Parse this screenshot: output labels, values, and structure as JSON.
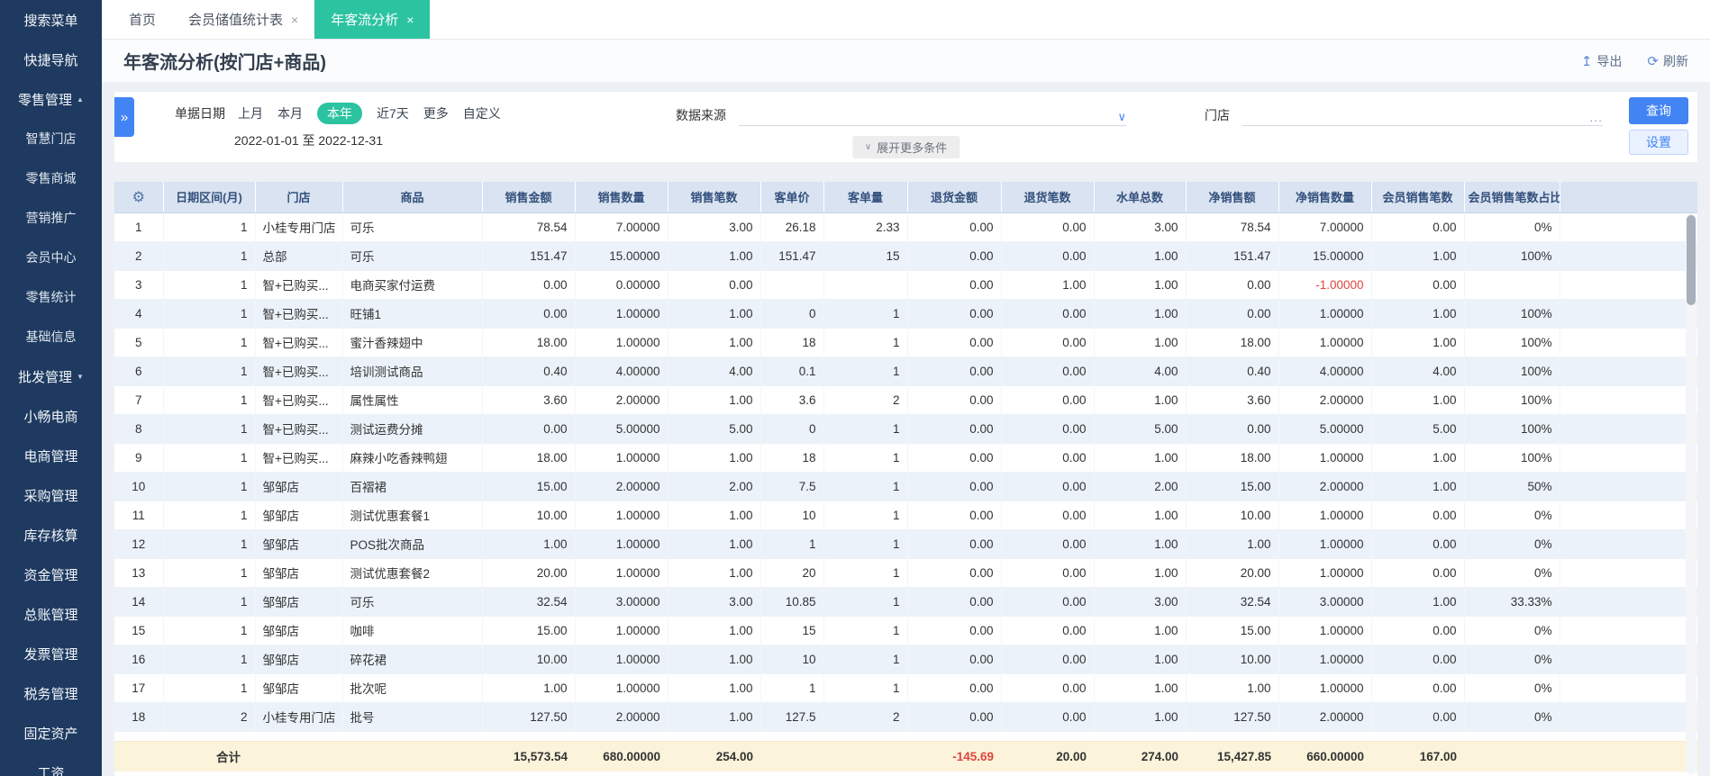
{
  "sidebar": {
    "items": [
      {
        "label": "搜索菜单"
      },
      {
        "label": "快捷导航"
      },
      {
        "label": "零售管理",
        "arrow": "up"
      },
      {
        "label": "智慧门店",
        "sub": true
      },
      {
        "label": "零售商城",
        "sub": true
      },
      {
        "label": "营销推广",
        "sub": true
      },
      {
        "label": "会员中心",
        "sub": true
      },
      {
        "label": "零售统计",
        "sub": true
      },
      {
        "label": "基础信息",
        "sub": true
      },
      {
        "label": "批发管理",
        "arrow": "down"
      },
      {
        "label": "小畅电商"
      },
      {
        "label": "电商管理"
      },
      {
        "label": "采购管理"
      },
      {
        "label": "库存核算"
      },
      {
        "label": "资金管理"
      },
      {
        "label": "总账管理"
      },
      {
        "label": "发票管理"
      },
      {
        "label": "税务管理"
      },
      {
        "label": "固定资产"
      },
      {
        "label": "工资"
      }
    ]
  },
  "tabs": [
    {
      "label": "首页",
      "closable": false,
      "active": false
    },
    {
      "label": "会员储值统计表",
      "closable": true,
      "active": false
    },
    {
      "label": "年客流分析",
      "closable": true,
      "active": true
    }
  ],
  "header": {
    "title": "年客流分析(按门店+商品)",
    "export_label": "导出",
    "refresh_label": "刷新"
  },
  "filters": {
    "date_label": "单据日期",
    "date_options": [
      "上月",
      "本月",
      "本年",
      "近7天",
      "更多",
      "自定义"
    ],
    "date_selected": "本年",
    "date_range": "2022-01-01 至 2022-12-31",
    "source_label": "数据来源",
    "store_label": "门店",
    "store_ellipsis": "...",
    "query_button": "查询",
    "settings_button": "设置",
    "expand_more": "展开更多条件"
  },
  "table": {
    "columns": [
      "日期区间(月)",
      "门店",
      "商品",
      "销售金额",
      "销售数量",
      "销售笔数",
      "客单价",
      "客单量",
      "退货金额",
      "退货笔数",
      "水单总数",
      "净销售额",
      "净销售数量",
      "会员销售笔数",
      "会员销售笔数占比"
    ],
    "rows": [
      [
        "1",
        "小桂专用门店",
        "可乐",
        "78.54",
        "7.00000",
        "3.00",
        "26.18",
        "2.33",
        "0.00",
        "0.00",
        "3.00",
        "78.54",
        "7.00000",
        "0.00",
        "0%"
      ],
      [
        "1",
        "总部",
        "可乐",
        "151.47",
        "15.00000",
        "1.00",
        "151.47",
        "15",
        "0.00",
        "0.00",
        "1.00",
        "151.47",
        "15.00000",
        "1.00",
        "100%"
      ],
      [
        "1",
        "智+已购买...",
        "电商买家付运费",
        "0.00",
        "0.00000",
        "0.00",
        "",
        "",
        "0.00",
        "1.00",
        "1.00",
        "0.00",
        "-1.00000",
        "0.00",
        ""
      ],
      [
        "1",
        "智+已购买...",
        "旺铺1",
        "0.00",
        "1.00000",
        "1.00",
        "0",
        "1",
        "0.00",
        "0.00",
        "1.00",
        "0.00",
        "1.00000",
        "1.00",
        "100%"
      ],
      [
        "1",
        "智+已购买...",
        "蜜汁香辣翅中",
        "18.00",
        "1.00000",
        "1.00",
        "18",
        "1",
        "0.00",
        "0.00",
        "1.00",
        "18.00",
        "1.00000",
        "1.00",
        "100%"
      ],
      [
        "1",
        "智+已购买...",
        "培训测试商品",
        "0.40",
        "4.00000",
        "4.00",
        "0.1",
        "1",
        "0.00",
        "0.00",
        "4.00",
        "0.40",
        "4.00000",
        "4.00",
        "100%"
      ],
      [
        "1",
        "智+已购买...",
        "属性属性",
        "3.60",
        "2.00000",
        "1.00",
        "3.6",
        "2",
        "0.00",
        "0.00",
        "1.00",
        "3.60",
        "2.00000",
        "1.00",
        "100%"
      ],
      [
        "1",
        "智+已购买...",
        "测试运费分摊",
        "0.00",
        "5.00000",
        "5.00",
        "0",
        "1",
        "0.00",
        "0.00",
        "5.00",
        "0.00",
        "5.00000",
        "5.00",
        "100%"
      ],
      [
        "1",
        "智+已购买...",
        "麻辣小吃香辣鸭翅",
        "18.00",
        "1.00000",
        "1.00",
        "18",
        "1",
        "0.00",
        "0.00",
        "1.00",
        "18.00",
        "1.00000",
        "1.00",
        "100%"
      ],
      [
        "1",
        "邹邹店",
        "百褶裙",
        "15.00",
        "2.00000",
        "2.00",
        "7.5",
        "1",
        "0.00",
        "0.00",
        "2.00",
        "15.00",
        "2.00000",
        "1.00",
        "50%"
      ],
      [
        "1",
        "邹邹店",
        "测试优惠套餐1",
        "10.00",
        "1.00000",
        "1.00",
        "10",
        "1",
        "0.00",
        "0.00",
        "1.00",
        "10.00",
        "1.00000",
        "0.00",
        "0%"
      ],
      [
        "1",
        "邹邹店",
        "POS批次商品",
        "1.00",
        "1.00000",
        "1.00",
        "1",
        "1",
        "0.00",
        "0.00",
        "1.00",
        "1.00",
        "1.00000",
        "0.00",
        "0%"
      ],
      [
        "1",
        "邹邹店",
        "测试优惠套餐2",
        "20.00",
        "1.00000",
        "1.00",
        "20",
        "1",
        "0.00",
        "0.00",
        "1.00",
        "20.00",
        "1.00000",
        "0.00",
        "0%"
      ],
      [
        "1",
        "邹邹店",
        "可乐",
        "32.54",
        "3.00000",
        "3.00",
        "10.85",
        "1",
        "0.00",
        "0.00",
        "3.00",
        "32.54",
        "3.00000",
        "1.00",
        "33.33%"
      ],
      [
        "1",
        "邹邹店",
        "咖啡",
        "15.00",
        "1.00000",
        "1.00",
        "15",
        "1",
        "0.00",
        "0.00",
        "1.00",
        "15.00",
        "1.00000",
        "0.00",
        "0%"
      ],
      [
        "1",
        "邹邹店",
        "碎花裙",
        "10.00",
        "1.00000",
        "1.00",
        "10",
        "1",
        "0.00",
        "0.00",
        "1.00",
        "10.00",
        "1.00000",
        "0.00",
        "0%"
      ],
      [
        "1",
        "邹邹店",
        "批次呢",
        "1.00",
        "1.00000",
        "1.00",
        "1",
        "1",
        "0.00",
        "0.00",
        "1.00",
        "1.00",
        "1.00000",
        "0.00",
        "0%"
      ],
      [
        "2",
        "小桂专用门店",
        "批号",
        "127.50",
        "2.00000",
        "1.00",
        "127.5",
        "2",
        "0.00",
        "0.00",
        "1.00",
        "127.50",
        "2.00000",
        "0.00",
        "0%"
      ]
    ],
    "total": {
      "label": "合计",
      "values": [
        "15,573.54",
        "680.00000",
        "254.00",
        "",
        "",
        "-145.69",
        "20.00",
        "274.00",
        "15,427.85",
        "660.00000",
        "167.00",
        ""
      ]
    }
  },
  "colors": {
    "accent_green": "#2cc3a1",
    "accent_blue": "#4284f4",
    "negative_red": "#e0443f",
    "sidebar_bg": "#1f3a60",
    "table_header_bg": "#d9e3f1",
    "total_row_bg": "#fcf4da"
  }
}
